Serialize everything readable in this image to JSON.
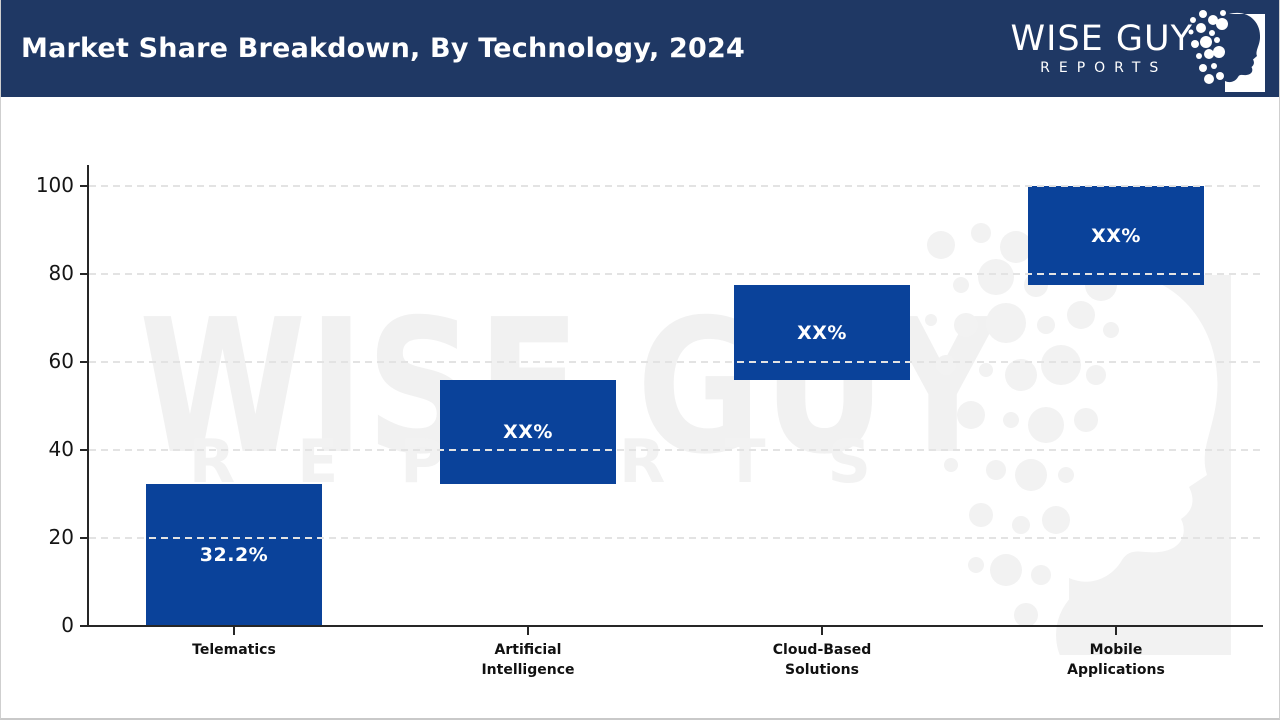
{
  "header": {
    "title": "Market Share Breakdown, By Technology, 2024",
    "bg_color": "#1f3864",
    "logo": {
      "wordmark": "WISE GUY",
      "tagline": "REPORTS"
    }
  },
  "watermark": {
    "wordmark": "WISE GUY",
    "tagline": "REPORTS"
  },
  "chart_data": {
    "type": "bar",
    "subtype": "waterfall",
    "title": "Market Share Breakdown, By Technology, 2024",
    "categories": [
      "Telematics",
      "Artificial Intelligence",
      "Cloud-Based Solutions",
      "Mobile Applications"
    ],
    "segments": [
      {
        "category": "Telematics",
        "category_lines": [
          "Telematics"
        ],
        "start": 0,
        "end": 32.2,
        "label": "32.2%"
      },
      {
        "category": "Artificial Intelligence",
        "category_lines": [
          "Artificial",
          "Intelligence"
        ],
        "start": 32.2,
        "end": 55.9,
        "label": "XX%"
      },
      {
        "category": "Cloud-Based Solutions",
        "category_lines": [
          "Cloud-Based",
          "Solutions"
        ],
        "start": 55.9,
        "end": 77.5,
        "label": "XX%"
      },
      {
        "category": "Mobile Applications",
        "category_lines": [
          "Mobile",
          "Applications"
        ],
        "start": 77.5,
        "end": 100,
        "label": "XX%"
      }
    ],
    "yticks": [
      0,
      20,
      40,
      60,
      80,
      100
    ],
    "ylim": [
      0,
      104
    ],
    "xlabel": "",
    "ylabel": "",
    "grid": "horizontal-dashed",
    "legend": "none",
    "bar_color": "#0a429a",
    "axis_color": "#262626",
    "grid_color": "#e3e3e3",
    "inside_label_color": "#ffffff"
  }
}
